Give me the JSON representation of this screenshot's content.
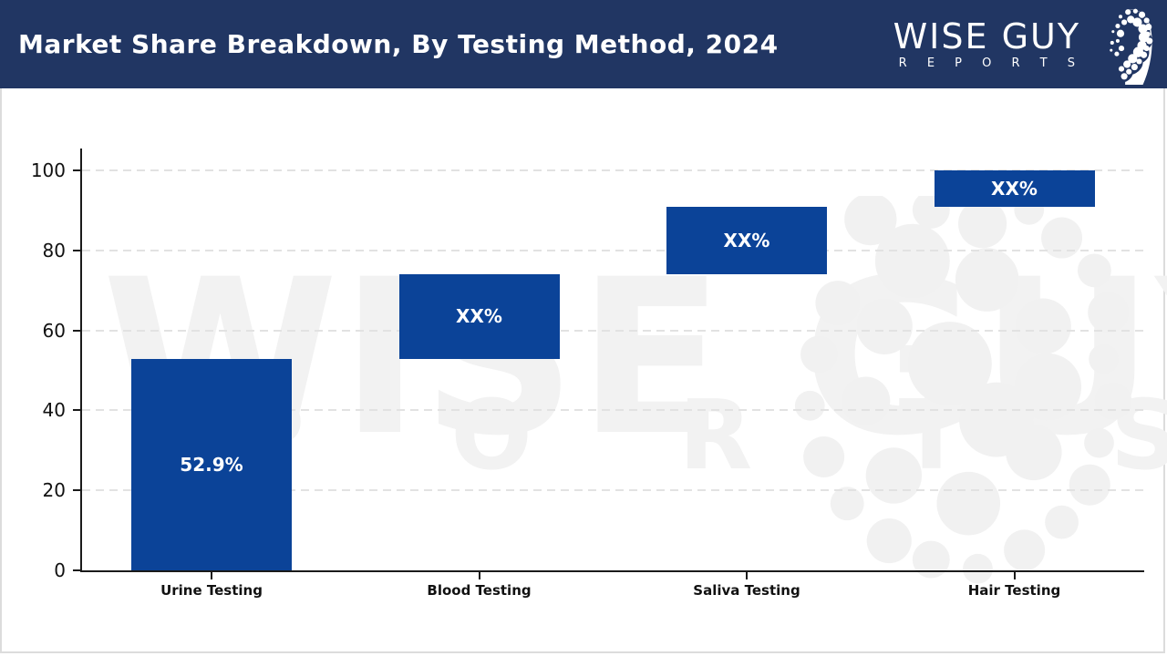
{
  "header": {
    "title": "Market Share Breakdown, By Testing Method, 2024",
    "bg_color": "#213663",
    "logo": {
      "line1": "WISE GUY",
      "line2": "R E P O R T S"
    }
  },
  "watermark": {
    "line1": "WISE GUY",
    "line2": "P O R T S"
  },
  "chart_data": {
    "type": "bar",
    "subtype": "waterfall",
    "title": "Market Share Breakdown, By Testing Method, 2024",
    "categories": [
      "Urine Testing",
      "Blood Testing",
      "Saliva Testing",
      "Hair Testing"
    ],
    "segments": [
      {
        "category": "Urine Testing",
        "base": 0,
        "top": 52.9,
        "label": "52.9%"
      },
      {
        "category": "Blood Testing",
        "base": 52.9,
        "top": 74.0,
        "label": "XX%"
      },
      {
        "category": "Saliva Testing",
        "base": 74.0,
        "top": 91.0,
        "label": "XX%"
      },
      {
        "category": "Hair Testing",
        "base": 91.0,
        "top": 100.0,
        "label": "XX%"
      }
    ],
    "ylim": [
      0,
      100
    ],
    "yticks": [
      0,
      20,
      40,
      60,
      80,
      100
    ],
    "grid": "horizontal-dashed",
    "legend": "none",
    "bar_color": "#0b4398",
    "label_color": "#ffffff"
  }
}
